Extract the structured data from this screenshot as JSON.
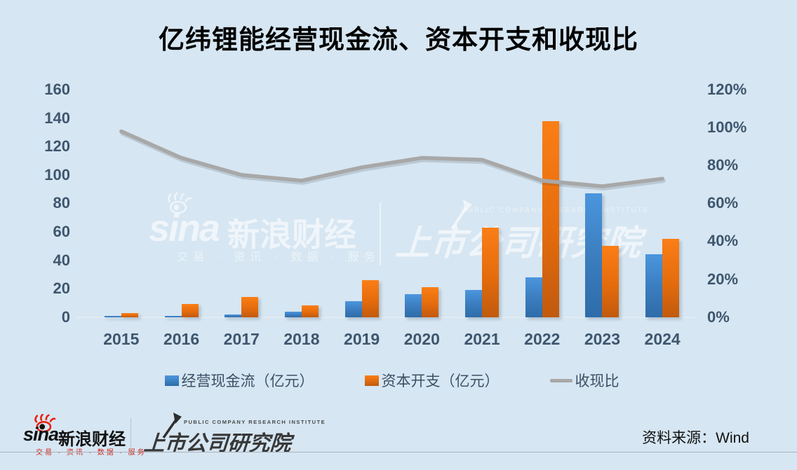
{
  "title": "亿纬锂能经营现金流、资本开支和收现比",
  "chart_data": {
    "type": "combo_bar_line",
    "categories": [
      "2015",
      "2016",
      "2017",
      "2018",
      "2019",
      "2020",
      "2021",
      "2022",
      "2023",
      "2024"
    ],
    "series": [
      {
        "name": "经营现金流（亿元）",
        "type": "bar",
        "axis": "left",
        "color": "#3f87c9",
        "values": [
          1,
          1,
          2,
          4,
          11,
          16,
          19,
          28,
          87,
          44
        ]
      },
      {
        "name": "资本开支（亿元）",
        "type": "bar",
        "axis": "left",
        "color": "#ee7210",
        "values": [
          3,
          9,
          14,
          8,
          26,
          21,
          63,
          138,
          50,
          55
        ]
      },
      {
        "name": "收现比",
        "type": "line",
        "axis": "right",
        "color": "#a8a8a8",
        "unit": "%",
        "values": [
          98,
          84,
          75,
          72,
          79,
          84,
          83,
          72,
          69,
          73
        ]
      }
    ],
    "left_axis": {
      "min": 0,
      "max": 160,
      "ticks": [
        160,
        140,
        120,
        100,
        80,
        60,
        40,
        20,
        0
      ]
    },
    "right_axis": {
      "min_percent": 0,
      "max_percent": 120,
      "tick_labels": [
        "120%",
        "100%",
        "80%",
        "60%",
        "40%",
        "20%",
        "0%"
      ]
    },
    "legend_position": "bottom",
    "grid": false
  },
  "watermark": {
    "sina_brand": "sina",
    "sina_name": "新浪财经",
    "sina_slogan": "交易 · 资讯 · 数据 · 服务",
    "pcri_en": "PUBLIC COMPANY RESEARCH INSTITUTE",
    "pcri_name": "上市公司研究院"
  },
  "footer": {
    "sina_brand": "sina",
    "sina_name": "新浪财经",
    "sina_slogan": "交易 · 资讯 · 数据 · 服务",
    "pcri_en": "PUBLIC COMPANY RESEARCH INSTITUTE",
    "pcri_name": "上市公司研究院",
    "source": "资料来源：Wind"
  }
}
